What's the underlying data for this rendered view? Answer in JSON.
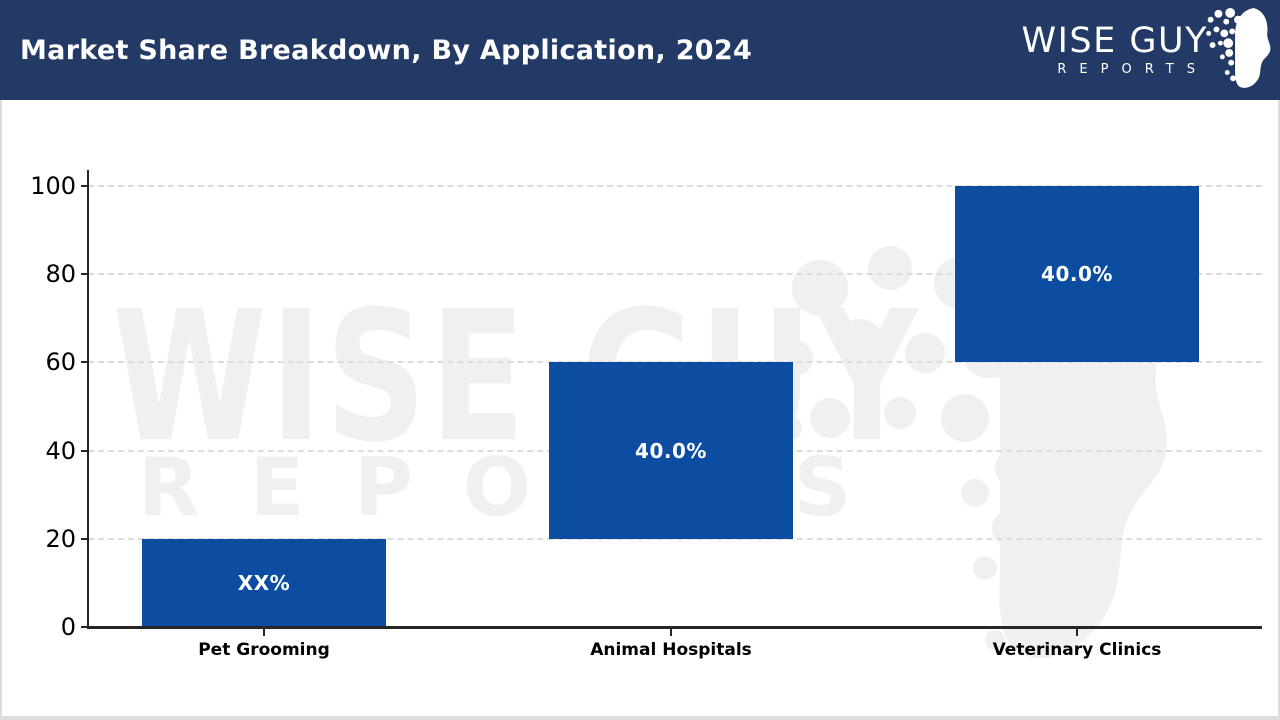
{
  "header": {
    "title": "Market Share Breakdown, By Application, 2024",
    "brand": {
      "line1": "WISE GUY",
      "line2": "REPORTS"
    }
  },
  "watermark": {
    "line1": "WISE GUY",
    "line2": "REPORTS"
  },
  "chart_data": {
    "type": "bar",
    "subtype": "stepped-waterfall",
    "title": "Market Share Breakdown, By Application, 2024",
    "categories": [
      "Pet Grooming",
      "Animal Hospitals",
      "Veterinary Clinics"
    ],
    "segments": [
      {
        "category": "Pet Grooming",
        "start": 0,
        "end": 20,
        "label": "XX%"
      },
      {
        "category": "Animal Hospitals",
        "start": 20,
        "end": 60,
        "label": "40.0%"
      },
      {
        "category": "Veterinary Clinics",
        "start": 60,
        "end": 100,
        "label": "40.0%"
      }
    ],
    "y_ticks": [
      0,
      20,
      40,
      60,
      80,
      100
    ],
    "ylim": [
      0,
      105
    ],
    "xlabel": "",
    "ylabel": "",
    "legend": "none",
    "grid": "horizontal-dashed",
    "colors": {
      "bar": "#0c4da2",
      "grid": "#dcdcdc",
      "axis": "#262626",
      "bar_label_text": "#ffffff",
      "tick_text": "#000000",
      "header_bg": "#233a66",
      "header_text": "#ffffff",
      "watermark": "#f0f0f3"
    }
  }
}
